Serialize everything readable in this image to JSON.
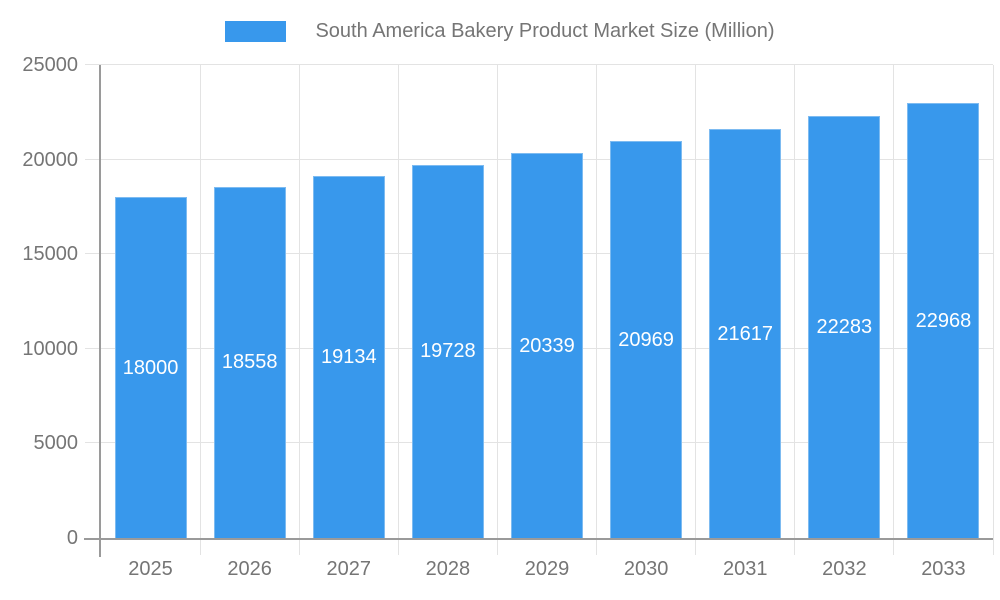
{
  "chart_data": {
    "type": "bar",
    "title": "South America Bakery Product Market Size (Million)",
    "legend_position": "top",
    "categories": [
      "2025",
      "2026",
      "2027",
      "2028",
      "2029",
      "2030",
      "2031",
      "2032",
      "2033"
    ],
    "series": [
      {
        "name": "South America Bakery Product Market Size (Million)",
        "values": [
          18000,
          18558,
          19134,
          19728,
          20339,
          20969,
          21617,
          22283,
          22968
        ]
      }
    ],
    "bar_value_labels": [
      "18000",
      "18558",
      "19134",
      "19728",
      "20339",
      "20969",
      "21617",
      "22283",
      "22968"
    ],
    "xlabel": "",
    "ylabel": "",
    "ylim": [
      0,
      25000
    ],
    "ytick_step": 5000,
    "ytick_labels": [
      "0",
      "5000",
      "10000",
      "15000",
      "20000",
      "25000"
    ],
    "grid": true,
    "colors": {
      "bar_fill": "#3898ec",
      "bar_border": "#7dbbf1",
      "bar_label_text": "#ffffff",
      "gridline": "#e3e3e3",
      "axis_line": "#9a9a9a",
      "tick_text": "#757575",
      "legend_text": "#757575",
      "background": "#ffffff"
    }
  }
}
